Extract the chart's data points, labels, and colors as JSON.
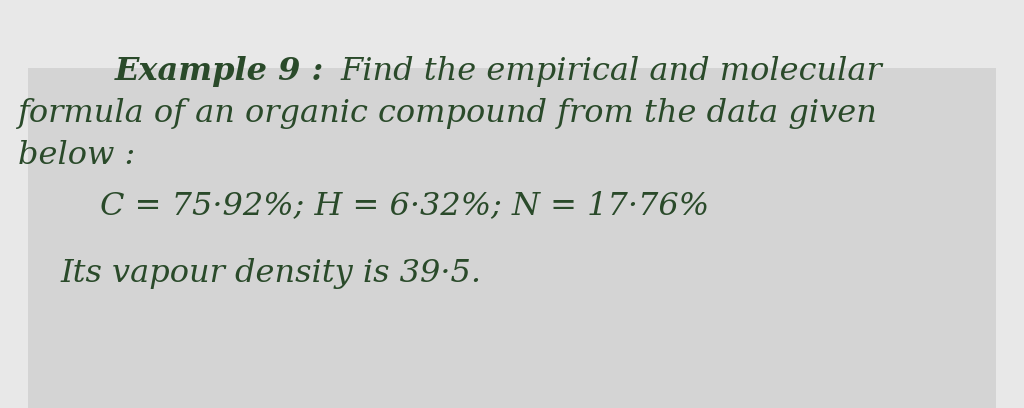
{
  "bg_top_color": "#e8e8e8",
  "bg_inner_color": "#d4d4d4",
  "text_color": "#2a4a2a",
  "line1_bold": "Example 9 : ",
  "line1_italic": "Find the empirical and molecular",
  "line2": "formula of an organic compound from the data given",
  "line3": "below :",
  "line4": "C = 75·92%; H = 6·32%; N = 17·76%",
  "line5": "Its vapour density is 39·5.",
  "fig_width": 10.24,
  "fig_height": 4.08,
  "dpi": 100
}
